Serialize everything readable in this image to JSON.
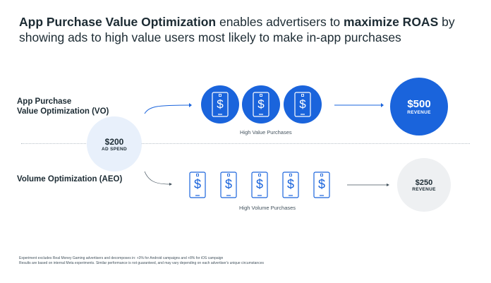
{
  "headline": {
    "part1": "App Purchase Value Optimization",
    "part2": " enables advertisers to ",
    "part3": "maximize ROAS",
    "part4": " by showing ads to high value users most likely to make in-app purchases"
  },
  "vo": {
    "label_line1": "App Purchase",
    "label_line2": "Value Optimization (VO)",
    "caption": "High Value Purchases",
    "revenue_amount": "$500",
    "revenue_label": "REVENUE",
    "purchase_icons": [
      "phone-dollar-icon",
      "phone-dollar-icon",
      "phone-dollar-icon"
    ]
  },
  "spend": {
    "amount": "$200",
    "label": "AD SPEND"
  },
  "aeo": {
    "label": "Volume Optimization (AEO)",
    "caption": "High Volume Purchases",
    "revenue_amount": "$250",
    "revenue_label": "REVENUE",
    "purchase_icons": [
      "phone-dollar-icon",
      "phone-dollar-icon",
      "phone-dollar-icon",
      "phone-dollar-icon",
      "phone-dollar-icon"
    ]
  },
  "footnote": {
    "line1": "Experiment excludes Real Money Gaming advertisers and decomposes in: +3% for Android campaigns and +8% for iOS campaign",
    "line2": "Results are based on internal Meta experiments. Similar performance is not guaranteed, and may vary depending on each advertiser's unique circumstances"
  },
  "colors": {
    "accent": "#1a64dc",
    "spend_circle": "#e8f0fb",
    "aeo_revenue_circle": "#eef0f2",
    "text": "#1c2b33"
  }
}
